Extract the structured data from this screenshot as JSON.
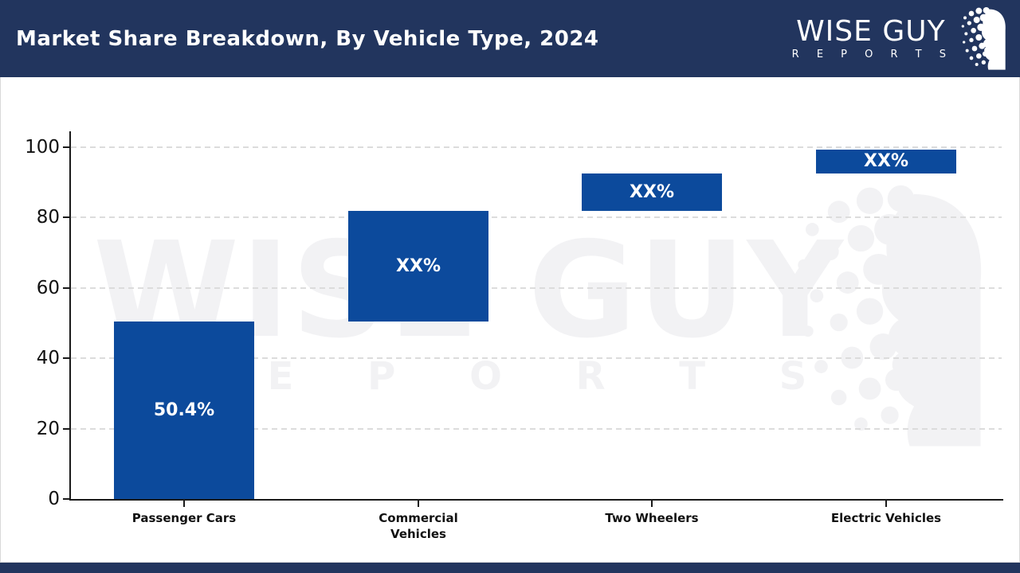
{
  "header": {
    "title": "Market Share Breakdown, By Vehicle Type, 2024",
    "logo": {
      "name": "WISE GUY",
      "sub": "R E P O R T S"
    }
  },
  "watermark": {
    "line1": "WISE GUY",
    "line2": "R E P O R T S"
  },
  "chart_data": {
    "type": "bar",
    "subtype": "waterfall",
    "title": "Market Share Breakdown, By Vehicle Type, 2024",
    "categories": [
      {
        "label": "Passenger Cars",
        "lines": [
          "Passenger Cars"
        ]
      },
      {
        "label": "Commercial Vehicles",
        "lines": [
          "Commercial",
          "Vehicles"
        ]
      },
      {
        "label": "Two Wheelers",
        "lines": [
          "Two Wheelers"
        ]
      },
      {
        "label": "Electric Vehicles",
        "lines": [
          "Electric Vehicles"
        ]
      }
    ],
    "segments": [
      {
        "category": "Passenger Cars",
        "start": 0,
        "end": 50.4,
        "label": "50.4%"
      },
      {
        "category": "Commercial Vehicles",
        "start": 50.4,
        "end": 82.0,
        "label": "XX%"
      },
      {
        "category": "Two Wheelers",
        "start": 82.0,
        "end": 92.5,
        "label": "XX%"
      },
      {
        "category": "Electric Vehicles",
        "start": 92.5,
        "end": 99.4,
        "label": "XX%"
      }
    ],
    "xlabel": "",
    "ylabel": "",
    "ylim": [
      0,
      104.5
    ],
    "yticks": [
      0,
      20,
      40,
      60,
      80,
      100
    ],
    "grid": "horizontal-dashed",
    "legend": "none",
    "colors": {
      "bar": "#0c4a9c",
      "bar_label": "#ffffff",
      "grid": "#dcdcdc",
      "axis": "#1a1a1a",
      "header_bg": "#22355e",
      "watermark": "#f2f2f4"
    }
  }
}
